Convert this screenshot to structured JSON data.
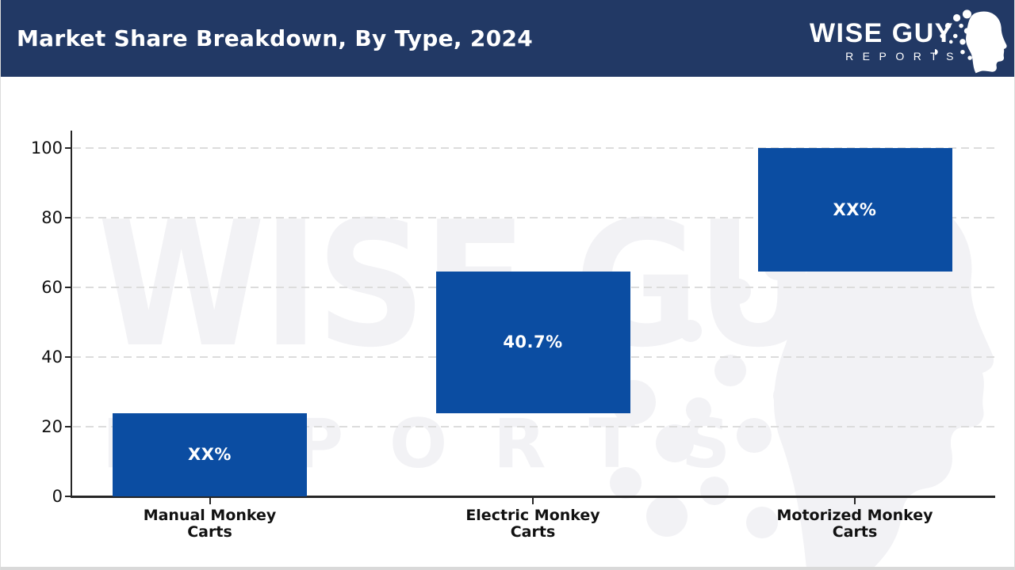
{
  "header": {
    "title": "Market Share Breakdown, By Type, 2024",
    "logo": {
      "primary": "WISE GUY",
      "secondary": "REPORTS"
    }
  },
  "watermark": {
    "primary": "WISE GUY",
    "secondary": "REPORTS"
  },
  "colors": {
    "header_bg": "#223965",
    "header_text": "#FFFFFF",
    "bar": "#0B4DA2",
    "bar_label": "#FFFFFF",
    "axis": "#262626",
    "tick_label": "#111111",
    "grid": "#DCDCDC",
    "watermark": "#F2F2F5",
    "bottom_strip": "#D9D9D9"
  },
  "chart_data": {
    "type": "bar",
    "subtype": "waterfall",
    "title": "Market Share Breakdown, By Type, 2024",
    "categories": [
      "Manual Monkey Carts",
      "Electric Monkey Carts",
      "Motorized Monkey Carts"
    ],
    "segments": [
      {
        "category": "Manual Monkey Carts",
        "start": 0,
        "end": 23.9,
        "label": "XX%"
      },
      {
        "category": "Electric Monkey Carts",
        "start": 23.9,
        "end": 64.6,
        "label": "40.7%"
      },
      {
        "category": "Motorized Monkey Carts",
        "start": 64.6,
        "end": 100,
        "label": "XX%"
      }
    ],
    "xlabel": "",
    "ylabel": "",
    "yticks": [
      0,
      20,
      40,
      60,
      80,
      100
    ],
    "ylim": [
      0,
      105
    ],
    "grid": "horizontal-dashed",
    "legend": "none",
    "bar_color": "#0B4DA2"
  }
}
